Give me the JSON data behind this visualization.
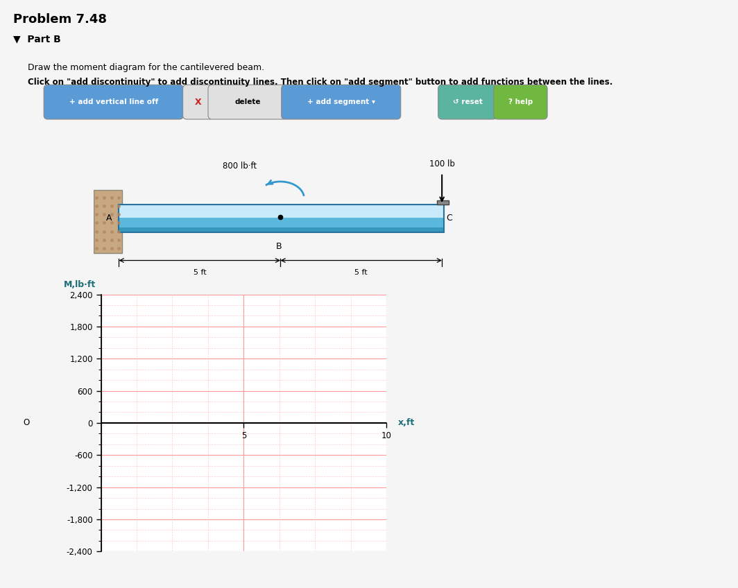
{
  "title": "Problem 7.48",
  "part": "Part B",
  "description": "Draw the moment diagram for the cantilevered beam.",
  "instruction": "Click on \"add discontinuity\" to add discontinuity lines. Then click on \"add segment\" button to add functions between the lines.",
  "beam_label_left": "A",
  "beam_label_mid": "B",
  "beam_label_right": "C",
  "load_label": "100 lb",
  "moment_label": "800 lb·ft",
  "dist_left": "5 ft",
  "dist_right": "5 ft",
  "btn_add_line": "+ add vertical line off",
  "btn_delete": "delete",
  "btn_add_segment": "+ add segment ▾",
  "btn_reset": "↺ reset",
  "btn_help": "? help",
  "ylim": [
    -2400,
    2400
  ],
  "xlim": [
    0,
    10
  ],
  "yticks": [
    -2400,
    -1800,
    -1200,
    -600,
    0,
    600,
    1200,
    1800,
    2400
  ],
  "xticks": [
    5,
    10
  ],
  "ylabel": "M,lb·ft",
  "xlabel": "x,ft",
  "bg_page": "#f5f5f5",
  "bg_white": "#ffffff",
  "bg_part": "#e0e0e0",
  "bg_panel": "#cce0f5",
  "bg_chart": "#ffffff",
  "grid_major_color": "#ff9999",
  "grid_minor_color": "#ffcccc",
  "label_color": "#1a6e78",
  "btn_blue": "#5b9bd5",
  "btn_gray_bg": "#e0e0e0",
  "btn_teal": "#5ab4a0",
  "btn_green": "#70b840",
  "beam_light": "#b8e4f5",
  "beam_mid": "#5ab8dc",
  "beam_dark": "#3898bc",
  "wall_color": "#c8a882"
}
